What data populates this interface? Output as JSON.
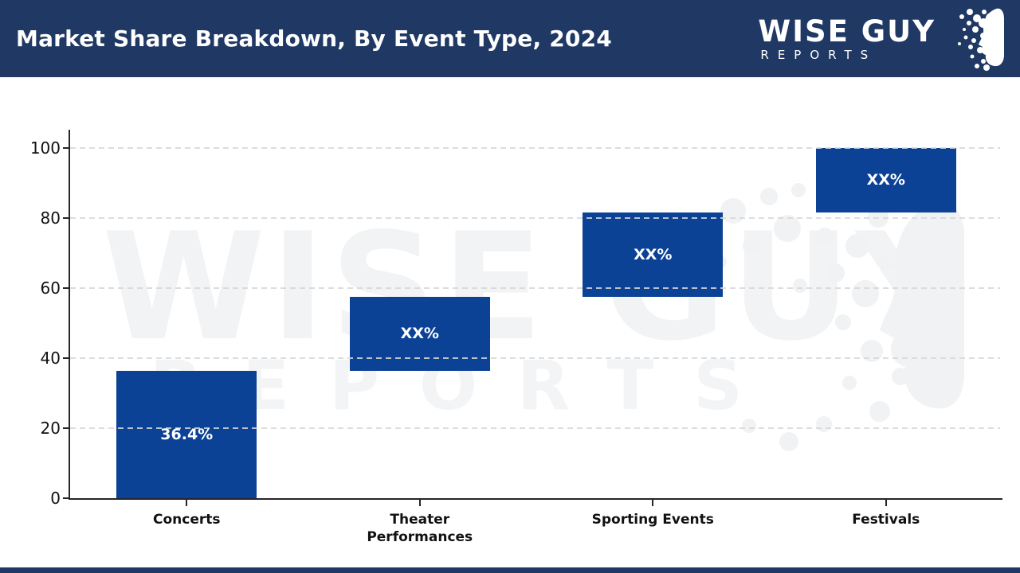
{
  "header": {
    "title": "Market Share Breakdown, By Event Type, 2024",
    "background_color": "#1f3864",
    "logo": {
      "line1": "WISE GUY",
      "line2": "REPORTS",
      "face_icon": "dotted-face-profile"
    }
  },
  "watermark": {
    "line1": "WISE GUY",
    "line2": "REPORTS"
  },
  "chart_data": {
    "type": "bar",
    "variant": "waterfall",
    "title": "Market Share Breakdown, By Event Type, 2024",
    "xlabel": "",
    "ylabel": "",
    "ylim": [
      0,
      105
    ],
    "yticks": [
      0,
      20,
      40,
      60,
      80,
      100
    ],
    "grid": {
      "horizontal": true,
      "style": "dashed",
      "color": "#d7d7d7"
    },
    "legend": "none",
    "bar_color": "#0b4295",
    "bar_label_color": "#ffffff",
    "categories": [
      "Concerts",
      "Theater Performances",
      "Sporting Events",
      "Festivals"
    ],
    "values": [
      36.4,
      21.2,
      24.0,
      18.4
    ],
    "segments": [
      {
        "category_lines": [
          "Concerts"
        ],
        "start": 0,
        "end": 36.4,
        "label": "36.4%"
      },
      {
        "category_lines": [
          "Theater",
          "Performances"
        ],
        "start": 36.4,
        "end": 57.6,
        "label": "XX%"
      },
      {
        "category_lines": [
          "Sporting Events"
        ],
        "start": 57.6,
        "end": 81.6,
        "label": "XX%"
      },
      {
        "category_lines": [
          "Festivals"
        ],
        "start": 81.6,
        "end": 100.0,
        "label": "XX%"
      }
    ]
  },
  "footer": {
    "background_color": "#1f3864"
  }
}
